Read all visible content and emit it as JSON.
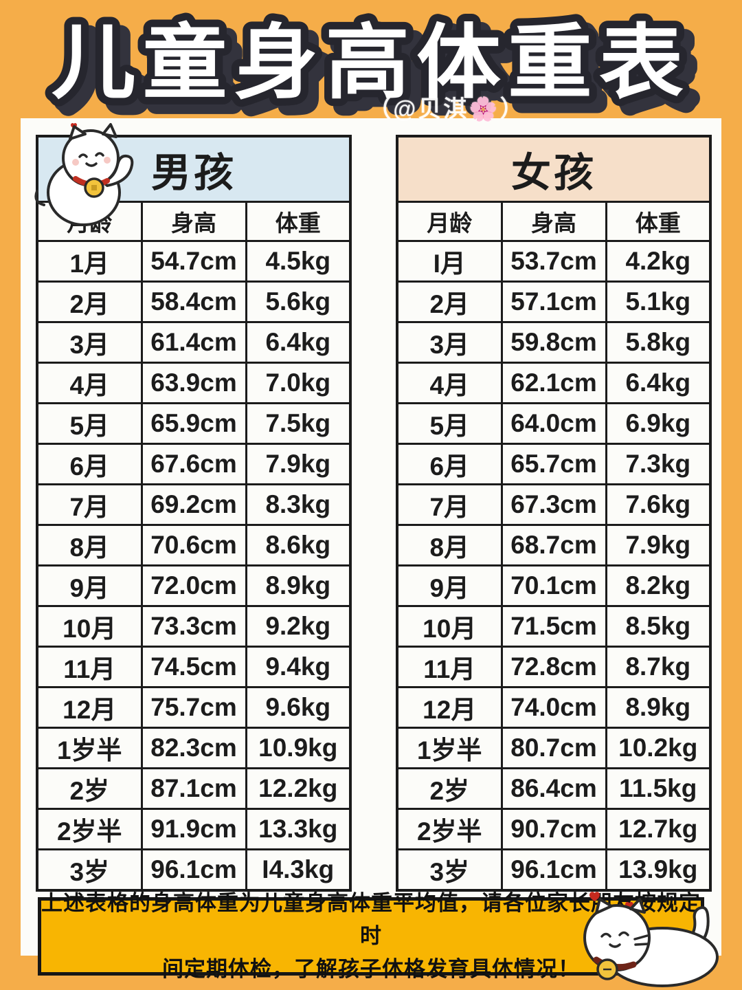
{
  "poster": {
    "title": "儿童身高体重表",
    "watermark": "（@贝淇🌸）"
  },
  "chart_data": [
    {
      "type": "table",
      "title": "男孩",
      "columns": [
        "月龄",
        "身高",
        "体重"
      ],
      "rows": [
        [
          "1月",
          "54.7cm",
          "4.5kg"
        ],
        [
          "2月",
          "58.4cm",
          "5.6kg"
        ],
        [
          "3月",
          "61.4cm",
          "6.4kg"
        ],
        [
          "4月",
          "63.9cm",
          "7.0kg"
        ],
        [
          "5月",
          "65.9cm",
          "7.5kg"
        ],
        [
          "6月",
          "67.6cm",
          "7.9kg"
        ],
        [
          "7月",
          "69.2cm",
          "8.3kg"
        ],
        [
          "8月",
          "70.6cm",
          "8.6kg"
        ],
        [
          "9月",
          "72.0cm",
          "8.9kg"
        ],
        [
          "10月",
          "73.3cm",
          "9.2kg"
        ],
        [
          "11月",
          "74.5cm",
          "9.4kg"
        ],
        [
          "12月",
          "75.7cm",
          "9.6kg"
        ],
        [
          "1岁半",
          "82.3cm",
          "10.9kg"
        ],
        [
          "2岁",
          "87.1cm",
          "12.2kg"
        ],
        [
          "2岁半",
          "91.9cm",
          "13.3kg"
        ],
        [
          "3岁",
          "96.1cm",
          "I4.3kg"
        ]
      ]
    },
    {
      "type": "table",
      "title": "女孩",
      "columns": [
        "月龄",
        "身高",
        "体重"
      ],
      "rows": [
        [
          "I月",
          "53.7cm",
          "4.2kg"
        ],
        [
          "2月",
          "57.1cm",
          "5.1kg"
        ],
        [
          "3月",
          "59.8cm",
          "5.8kg"
        ],
        [
          "4月",
          "62.1cm",
          "6.4kg"
        ],
        [
          "5月",
          "64.0cm",
          "6.9kg"
        ],
        [
          "6月",
          "65.7cm",
          "7.3kg"
        ],
        [
          "7月",
          "67.3cm",
          "7.6kg"
        ],
        [
          "8月",
          "68.7cm",
          "7.9kg"
        ],
        [
          "9月",
          "70.1cm",
          "8.2kg"
        ],
        [
          "10月",
          "71.5cm",
          "8.5kg"
        ],
        [
          "11月",
          "72.8cm",
          "8.7kg"
        ],
        [
          "12月",
          "74.0cm",
          "8.9kg"
        ],
        [
          "1岁半",
          "80.7cm",
          "10.2kg"
        ],
        [
          "2岁",
          "86.4cm",
          "11.5kg"
        ],
        [
          "2岁半",
          "90.7cm",
          "12.7kg"
        ],
        [
          "3岁",
          "96.1cm",
          "13.9kg"
        ]
      ]
    }
  ],
  "footer_note": {
    "lines": [
      "上述表格的身高体重为儿童身高体重平均值，请各位家长朋友按规定时",
      "间定期体检，了解孩子体格发育具体情况！"
    ]
  },
  "icons": {
    "top_left": "lucky-cat-waving-icon",
    "bottom_right": "lucky-cat-lying-icon",
    "decoration": "red-heart-icon"
  },
  "colors": {
    "background": "#F5AD49",
    "panel": "#FCFCF9",
    "boys_header": "#D8E8F1",
    "girls_header": "#F6DFC9",
    "note_background": "#F8B502",
    "table_border": "#1B1B1B",
    "title_fill": "#FFFFFF",
    "title_outline": "#26262E"
  }
}
